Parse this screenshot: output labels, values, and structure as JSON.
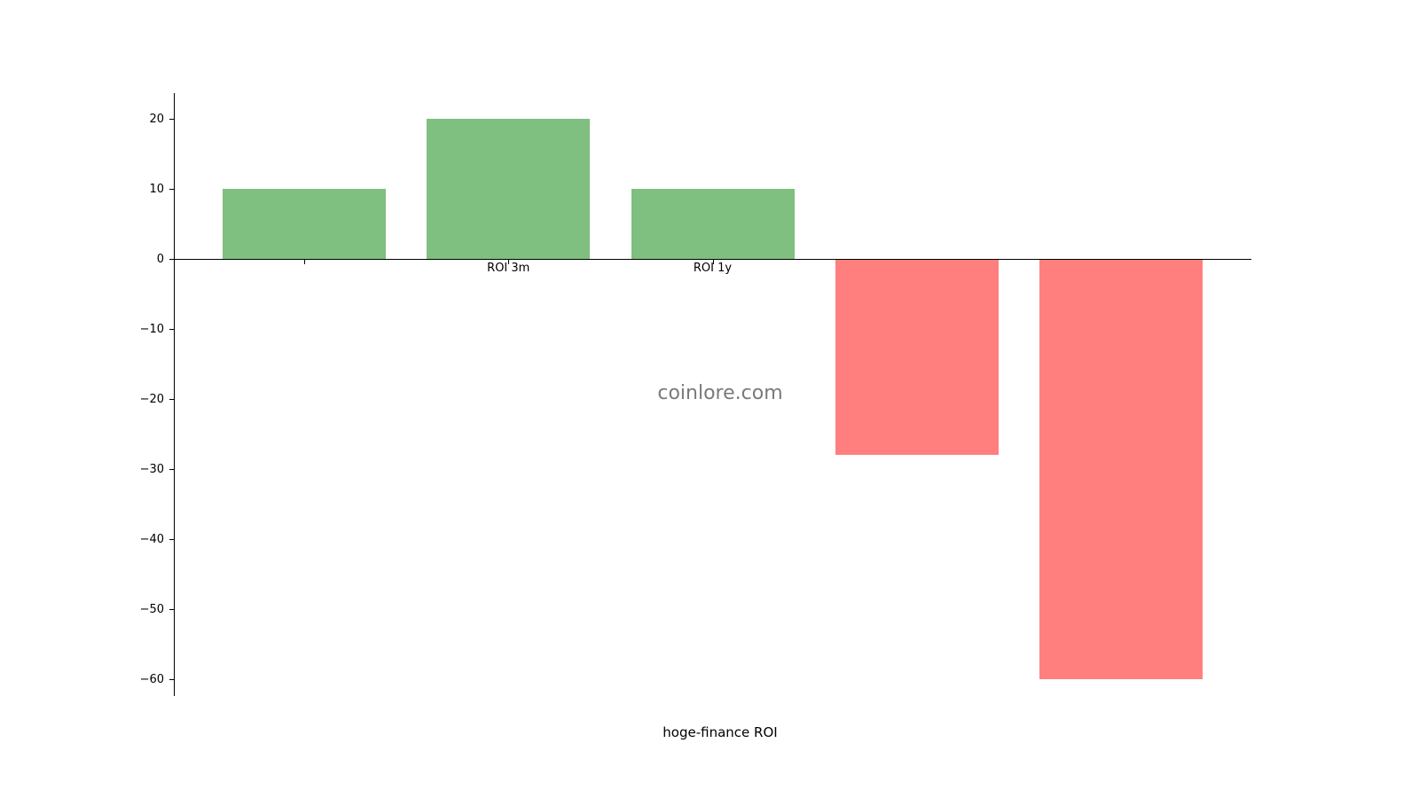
{
  "watermark": {
    "text": "coinlore.com",
    "color": "#7a7a7a"
  },
  "chart_data": {
    "type": "bar",
    "title": "hoge-finance ROI",
    "categories": [
      "",
      "ROI 3m",
      "ROI 1y",
      "",
      ""
    ],
    "values": [
      10,
      20,
      10,
      -28,
      -60
    ],
    "positive_color": "#7fbf7f",
    "negative_color": "#ff7f7f",
    "axis_color": "#000000",
    "yticks": [
      20,
      10,
      0,
      -10,
      -20,
      -30,
      -40,
      -50,
      -60
    ],
    "ylim": [
      -62,
      24
    ],
    "xlabel": "",
    "ylabel": "",
    "grid": false,
    "legend": "none"
  }
}
